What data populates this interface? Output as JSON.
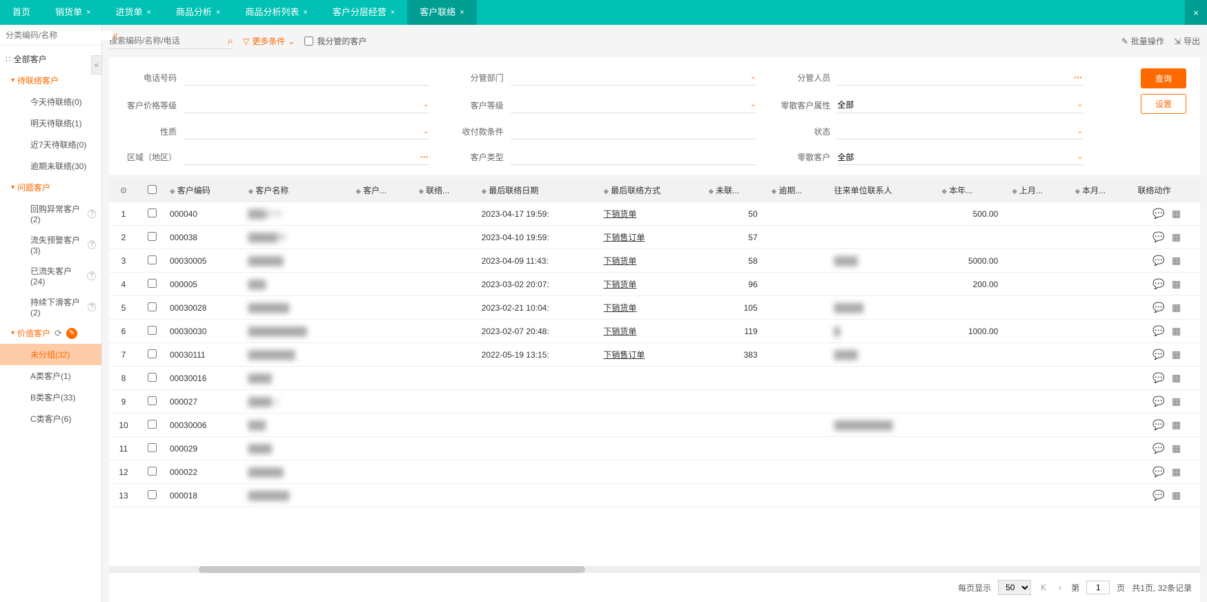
{
  "tabs": [
    {
      "label": "首页",
      "closable": false
    },
    {
      "label": "销货单",
      "closable": true
    },
    {
      "label": "进货单",
      "closable": true
    },
    {
      "label": "商品分析",
      "closable": true
    },
    {
      "label": "商品分析列表",
      "closable": true
    },
    {
      "label": "客户分层经营",
      "closable": true
    },
    {
      "label": "客户联络",
      "closable": true,
      "active": true
    }
  ],
  "sidebar": {
    "search_placeholder": "分类编码/名称",
    "root": "全部客户",
    "groups": [
      {
        "label": "待联络客户",
        "children": [
          {
            "label": "今天待联络(0)"
          },
          {
            "label": "明天待联络(1)"
          },
          {
            "label": "近7天待联络(0)"
          },
          {
            "label": "逾期未联络(30)"
          }
        ]
      },
      {
        "label": "问题客户",
        "children": [
          {
            "label": "回购异常客户(2)",
            "help": true
          },
          {
            "label": "流失预警客户(3)",
            "help": true
          },
          {
            "label": "已流失客户(24)",
            "help": true
          },
          {
            "label": "持续下滑客户(2)",
            "help": true
          }
        ]
      },
      {
        "label": "价值客户",
        "refresh": true,
        "edit": true,
        "children": [
          {
            "label": "未分组(32)",
            "active": true
          },
          {
            "label": "A类客户(1)"
          },
          {
            "label": "B类客户(33)"
          },
          {
            "label": "C类客户(6)"
          }
        ]
      }
    ]
  },
  "toolbar": {
    "search_placeholder": "搜索编码/名称/电话",
    "more_cond": "更多条件",
    "my_customers": "我分管的客户",
    "batch_op": "批量操作",
    "export": "导出"
  },
  "filters": {
    "phone": "电话号码",
    "dept": "分管部门",
    "person": "分管人员",
    "price_level": "客户价格等级",
    "cust_level": "客户等级",
    "retail_attr": "零散客户属性",
    "retail_attr_val": "全部",
    "nature": "性质",
    "pay_cond": "收付款条件",
    "status": "状态",
    "region": "区域（地区）",
    "cust_type": "客户类型",
    "retail_cust": "零散客户",
    "retail_cust_val": "全部",
    "btn_query": "查询",
    "btn_setting": "设置"
  },
  "columns": {
    "code": "客户编码",
    "name": "客户名称",
    "cust": "客户...",
    "contact": "联络...",
    "last_date": "最后联络日期",
    "last_method": "最后联络方式",
    "unlinked": "未联...",
    "overdue": "逾期...",
    "contact_person": "往来单位联系人",
    "this_year": "本年...",
    "last_month": "上月...",
    "this_month": "本月...",
    "actions": "联络动作"
  },
  "rows": [
    {
      "idx": 1,
      "code": "000040",
      "name": "███条件",
      "date": "2023-04-17 19:59:",
      "method": "下销货单",
      "un": 50,
      "contact": "",
      "year": "500.00"
    },
    {
      "idx": 2,
      "code": "000038",
      "name": "█████销",
      "date": "2023-04-10 19:59:",
      "method": "下销售订单",
      "un": 57,
      "contact": "",
      "year": ""
    },
    {
      "idx": 3,
      "code": "00030005",
      "name": "██████",
      "date": "2023-04-09 11:43:",
      "method": "下销货单",
      "un": 58,
      "contact": "████",
      "year": "5000.00"
    },
    {
      "idx": 4,
      "code": "000005",
      "name": "███",
      "date": "2023-03-02 20:07:",
      "method": "下销货单",
      "un": 96,
      "contact": "",
      "year": "200.00"
    },
    {
      "idx": 5,
      "code": "00030028",
      "name": "███████",
      "date": "2023-02-21 10:04:",
      "method": "下销货单",
      "un": 105,
      "contact": "█████",
      "year": ""
    },
    {
      "idx": 6,
      "code": "00030030",
      "name": "██████████",
      "date": "2023-02-07 20:48:",
      "method": "下销货单",
      "un": 119,
      "contact": "█",
      "year": "1000.00"
    },
    {
      "idx": 7,
      "code": "00030111",
      "name": "████████",
      "date": "2022-05-19 13:15:",
      "method": "下销售订单",
      "un": 383,
      "contact": "████",
      "year": ""
    },
    {
      "idx": 8,
      "code": "00030016",
      "name": "████",
      "date": "",
      "method": "",
      "un": "",
      "contact": "",
      "year": ""
    },
    {
      "idx": 9,
      "code": "000027",
      "name": "████公",
      "date": "",
      "method": "",
      "un": "",
      "contact": "",
      "year": ""
    },
    {
      "idx": 10,
      "code": "00030006",
      "name": "███",
      "date": "",
      "method": "",
      "un": "",
      "contact": "██████████",
      "year": ""
    },
    {
      "idx": 11,
      "code": "000029",
      "name": "████",
      "date": "",
      "method": "",
      "un": "",
      "contact": "",
      "year": ""
    },
    {
      "idx": 12,
      "code": "000022",
      "name": "██████",
      "date": "",
      "method": "",
      "un": "",
      "contact": "",
      "year": ""
    },
    {
      "idx": 13,
      "code": "000018",
      "name": "███████",
      "date": "",
      "method": "",
      "un": "",
      "contact": "",
      "year": ""
    }
  ],
  "pager": {
    "per_page_label": "每页显示",
    "per_page": "50",
    "page_label_prefix": "第",
    "page": "1",
    "page_label_suffix": "页",
    "total": "共1页, 32条记录"
  },
  "colors": {
    "primary": "#00c1b3",
    "accent": "#ff6a00"
  }
}
